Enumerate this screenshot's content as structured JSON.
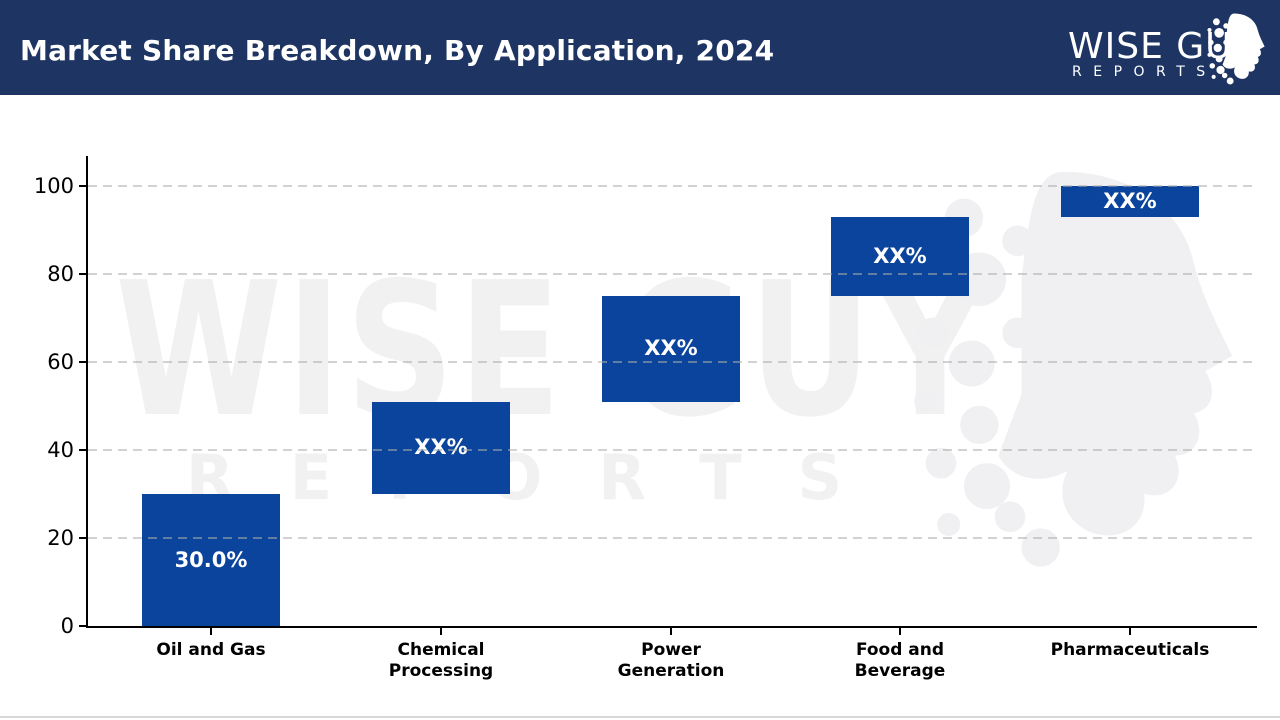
{
  "header": {
    "title": "Market Share Breakdown, By Application, 2024",
    "bg_color": "#1e3563",
    "logo": {
      "line1": "WISE GUY",
      "line2": "REPORTS"
    }
  },
  "watermark": {
    "line1": "WISE GUY",
    "line2": "REPORTS"
  },
  "chart_data": {
    "type": "bar",
    "subtype": "floating-waterfall",
    "title": "Market Share Breakdown, By Application, 2024",
    "categories": [
      "Oil and Gas",
      "Chemical Processing",
      "Power Generation",
      "Food and Beverage",
      "Pharmaceuticals"
    ],
    "bar_labels": [
      "30.0%",
      "XX%",
      "XX%",
      "XX%",
      "XX%"
    ],
    "values": [
      30,
      21,
      24,
      18,
      7
    ],
    "segments": [
      {
        "start": 0,
        "end": 30
      },
      {
        "start": 30,
        "end": 51
      },
      {
        "start": 51,
        "end": 75
      },
      {
        "start": 75,
        "end": 93
      },
      {
        "start": 93,
        "end": 100
      }
    ],
    "yticks": [
      0,
      20,
      40,
      60,
      80,
      100
    ],
    "ylim": [
      0,
      107
    ],
    "xlabel": "",
    "ylabel": "",
    "grid": "horizontal-dashed",
    "legend": "none",
    "bar_color": "#0b449c",
    "bar_label_color": "#ffffff"
  }
}
